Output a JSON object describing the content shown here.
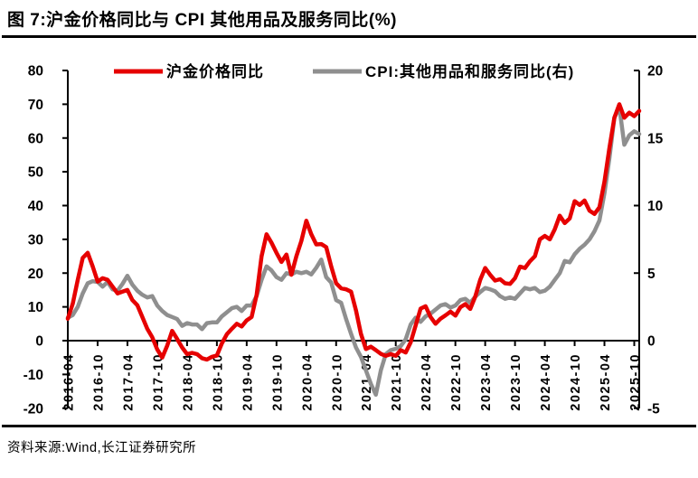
{
  "title": "图 7:沪金价格同比与 CPI 其他用品及服务同比(%)",
  "source": "资料来源:Wind,长江证券研究所",
  "legend": {
    "items": [
      {
        "label": "沪金价格同比",
        "color": "#e60000"
      },
      {
        "label": "CPI:其他用品和服务同比(右)",
        "color": "#8f8f8f"
      }
    ]
  },
  "chart_data": {
    "type": "line",
    "title": "图 7:沪金价格同比与 CPI 其他用品及服务同比(%)",
    "frequency": "monthly",
    "start_month": "2016-04",
    "end_month": "2025-11",
    "x_tick_labels": [
      "2016-04",
      "2016-10",
      "2017-04",
      "2017-10",
      "2018-04",
      "2018-10",
      "2019-04",
      "2019-10",
      "2020-04",
      "2020-10",
      "2021-04",
      "2021-10",
      "2022-04",
      "2022-10",
      "2023-04",
      "2023-10",
      "2024-04",
      "2024-10",
      "2025-04",
      "2025-10"
    ],
    "left_axis": {
      "ticks": [
        80,
        70,
        60,
        50,
        40,
        30,
        20,
        10,
        0,
        -10,
        -20
      ],
      "range": [
        -20,
        80
      ]
    },
    "right_axis": {
      "ticks": [
        20,
        15,
        10,
        5,
        0,
        -5
      ],
      "range": [
        -5,
        20
      ]
    },
    "grid": false,
    "legend_position": "top",
    "series": [
      {
        "name": "沪金价格同比",
        "axis": "left",
        "color": "#e60000",
        "values": [
          6.5,
          11,
          18,
          24.5,
          26,
          22,
          17.5,
          18.5,
          18,
          16,
          14,
          14.5,
          15,
          12,
          10.5,
          7,
          3.5,
          1,
          -2.6,
          -5,
          -1.5,
          2.9,
          0.5,
          -2,
          -4,
          -3.6,
          -4,
          -5.2,
          -5.6,
          -4.8,
          -4.4,
          -0.8,
          1.9,
          3.5,
          5,
          4.2,
          6,
          7,
          13.5,
          25,
          31.5,
          29,
          26,
          23.3,
          25.5,
          19.5,
          25,
          29.5,
          35.5,
          31.5,
          28.5,
          28.6,
          27.7,
          22,
          17,
          15.5,
          15.2,
          14.5,
          9,
          2,
          -2.5,
          -1.8,
          -2.8,
          -3.9,
          -4.5,
          -4,
          -4.5,
          -2.8,
          -3.5,
          -0.5,
          4.5,
          9.5,
          10.2,
          7,
          5,
          6.5,
          7.5,
          8.6,
          7.4,
          9.9,
          10.8,
          9.4,
          13,
          18,
          21.5,
          19.5,
          17.8,
          18.2,
          17,
          16.8,
          18.5,
          21.9,
          21.5,
          23.5,
          25,
          30,
          31,
          30,
          33,
          37,
          34.8,
          36.2,
          41.3,
          40.2,
          41.5,
          38.5,
          37.5,
          39.5,
          47,
          57,
          66,
          70,
          66,
          67.5,
          66.5,
          68
        ]
      },
      {
        "name": "CPI:其他用品和服务同比(右)",
        "axis": "right",
        "color": "#8f8f8f",
        "values": [
          1.7,
          1.9,
          2.5,
          3.5,
          4.25,
          4.4,
          4.35,
          4.0,
          4.35,
          3.8,
          3.7,
          4.2,
          4.8,
          4.15,
          3.7,
          3.4,
          3.2,
          3.3,
          2.6,
          2.2,
          1.9,
          1.75,
          1.6,
          1.1,
          1.3,
          1.2,
          1.2,
          0.85,
          1.3,
          1.35,
          1.35,
          1.8,
          2.1,
          2.4,
          2.5,
          2.2,
          2.6,
          2.6,
          3.3,
          4.5,
          5.5,
          5.2,
          4.7,
          4.5,
          5.0,
          4.9,
          5.1,
          5.0,
          5.1,
          4.9,
          5.4,
          6.0,
          4.7,
          4.3,
          3.0,
          2.8,
          1.6,
          0.5,
          -0.5,
          -1.2,
          -2.2,
          -3.2,
          -4.0,
          -2.2,
          -1.0,
          -0.7,
          -0.6,
          -0.4,
          0.1,
          1.2,
          1.7,
          1.4,
          1.8,
          2.0,
          2.3,
          2.6,
          2.7,
          2.45,
          2.6,
          3.0,
          3.1,
          2.8,
          3.25,
          3.6,
          3.9,
          3.8,
          3.65,
          3.3,
          3.1,
          3.2,
          3.1,
          3.5,
          3.9,
          3.8,
          3.9,
          3.6,
          3.7,
          4.0,
          4.5,
          5.0,
          5.9,
          5.8,
          6.4,
          6.8,
          7.1,
          7.5,
          8.1,
          8.9,
          10.9,
          13.5,
          16.5,
          17.3,
          14.5,
          15.2,
          15.5,
          15.3
        ]
      }
    ]
  }
}
